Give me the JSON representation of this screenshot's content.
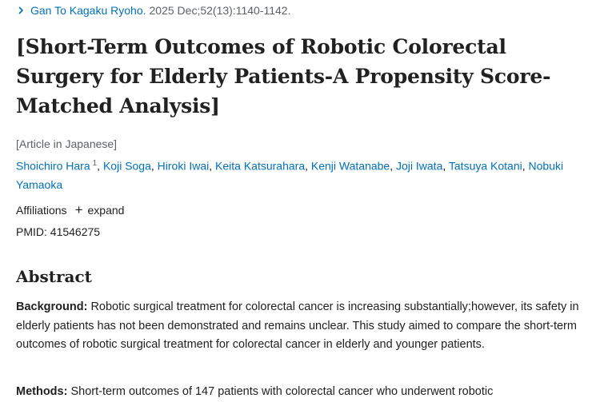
{
  "journal": {
    "name": "Gan To Kagaku Ryoho.",
    "citation": "2025 Dec;52(13):1140-1142."
  },
  "article": {
    "title": "[Short-Term Outcomes of Robotic Colorectal Surgery for Elderly Patients-A Propensity Score-Matched Analysis]",
    "language_note": "[Article in Japanese]",
    "authors": [
      {
        "name": "Shoichiro Hara",
        "sup": "1"
      },
      {
        "name": "Koji Soga"
      },
      {
        "name": "Hiroki Iwai"
      },
      {
        "name": "Keita Katsurahara"
      },
      {
        "name": "Kenji Watanabe"
      },
      {
        "name": "Joji Iwata"
      },
      {
        "name": "Tatsuya Kotani"
      },
      {
        "name": "Nobuki Yamaoka"
      }
    ],
    "affiliations_label": "Affiliations",
    "expand_label": "expand",
    "pmid_label": "PMID:",
    "pmid": "41546275"
  },
  "abstract": {
    "heading": "Abstract",
    "background_label": "Background:",
    "background_text": "Robotic surgical treatment for colorectal cancer is increasing substantially;however, its safety in elderly patients has not been demonstrated and remains unclear. This study aimed to compare the short-term outcomes of robotic surgical treatment for colorectal cancer in elderly and younger patients.",
    "methods_label": "Methods:",
    "methods_text": "Short-term outcomes of 147 patients with colorectal cancer who underwent robotic"
  },
  "colors": {
    "link": "#0071bc",
    "text": "#212121",
    "muted": "#5b616b"
  },
  "icons": {
    "journal_chevron": "chevron-right-icon",
    "expand": "plus-icon"
  }
}
